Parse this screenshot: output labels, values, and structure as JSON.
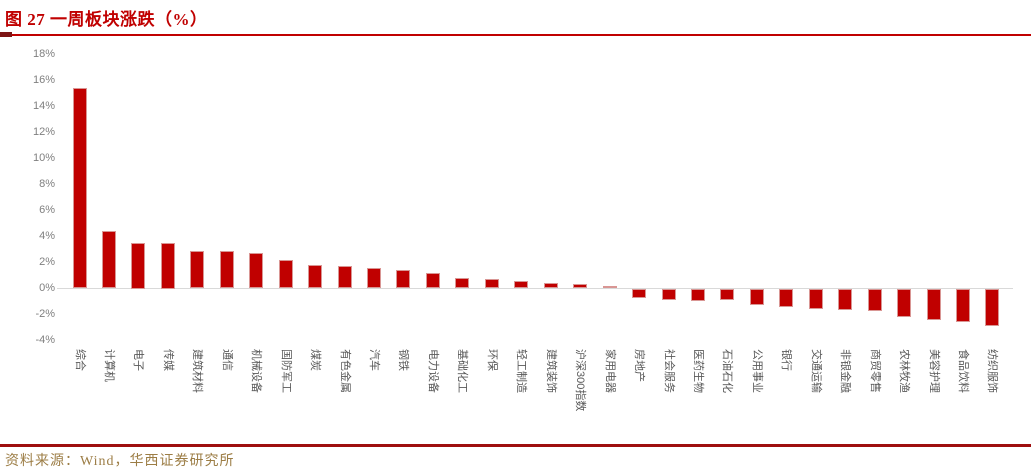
{
  "figure": {
    "title": "图 27 一周板块涨跌（%）",
    "source": "资料来源：Wind，华西证券研究所"
  },
  "colors": {
    "bar_fill": "#c00000",
    "bar_border": "#d99694",
    "title_red": "#c00000",
    "underline_accent": "#7d1414",
    "bottom_rule_red": "#9e0f0f",
    "source_text": "#9c7d45",
    "axis_line_gray": "#d9d9d9",
    "tick_text_gray": "#7f7f7f",
    "category_text_gray": "#595959"
  },
  "chart_data": {
    "type": "bar",
    "title": "一周板块涨跌（%）",
    "xlabel": "",
    "ylabel": "",
    "ylim": [
      -4,
      18
    ],
    "yticks": [
      18,
      16,
      14,
      12,
      10,
      8,
      6,
      4,
      2,
      0,
      -2,
      -4
    ],
    "ytick_suffix": "%",
    "grid": false,
    "legend": false,
    "categories": [
      "综合",
      "计算机",
      "电子",
      "传媒",
      "建筑材料",
      "通信",
      "机械设备",
      "国防军工",
      "煤炭",
      "有色金属",
      "汽车",
      "钢铁",
      "电力设备",
      "基础化工",
      "环保",
      "轻工制造",
      "建筑装饰",
      "沪深300指数",
      "家用电器",
      "房地产",
      "社会服务",
      "医药生物",
      "石油石化",
      "公用事业",
      "银行",
      "交通运输",
      "非银金融",
      "商贸零售",
      "农林牧渔",
      "美容护理",
      "食品饮料",
      "纺织服饰"
    ],
    "values": [
      15.4,
      4.4,
      3.5,
      3.5,
      2.9,
      2.9,
      2.7,
      2.2,
      1.8,
      1.7,
      1.6,
      1.4,
      1.2,
      0.8,
      0.7,
      0.55,
      0.4,
      0.35,
      0.2,
      -0.7,
      -0.85,
      -0.95,
      -0.9,
      -1.3,
      -1.4,
      -1.55,
      -1.65,
      -1.7,
      -2.2,
      -2.4,
      -2.6,
      -2.85
    ]
  }
}
